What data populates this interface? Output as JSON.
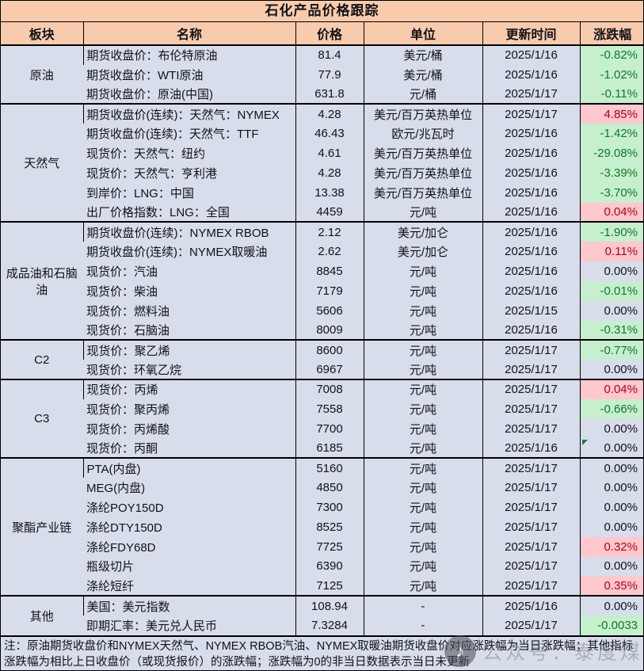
{
  "table": {
    "title": "石化产品价格跟踪",
    "columns": [
      "板块",
      "名称",
      "价格",
      "单位",
      "更新时间",
      "涨跌幅"
    ],
    "colors": {
      "header_bg": "#F8CBAD",
      "row_bg": "#D8DDEC",
      "up_bg": "#FFC7CE",
      "up_text": "#B40014",
      "down_bg": "#C6EFCE",
      "down_text": "#0E7A28",
      "border": "#000000"
    },
    "sections": [
      {
        "label": "原油",
        "rows": [
          {
            "name": "期货收盘价：布伦特原油",
            "price": "81.4",
            "unit": "美元/桶",
            "date": "2025/1/16",
            "change": "-0.82%",
            "dir": "down"
          },
          {
            "name": "期货收盘价：WTI原油",
            "price": "77.9",
            "unit": "美元/桶",
            "date": "2025/1/16",
            "change": "-1.02%",
            "dir": "down"
          },
          {
            "name": "期货收盘价：原油(中国)",
            "price": "631.8",
            "unit": "元/桶",
            "date": "2025/1/17",
            "change": "-0.11%",
            "dir": "down"
          }
        ]
      },
      {
        "label": "天然气",
        "rows": [
          {
            "name": "期货收盘价(连续)：天然气：NYMEX",
            "price": "4.28",
            "unit": "美元/百万英热单位",
            "date": "2025/1/17",
            "change": "4.85%",
            "dir": "up"
          },
          {
            "name": "期货收盘价(连续)：天然气：TTF",
            "price": "46.43",
            "unit": "欧元/兆瓦时",
            "date": "2025/1/16",
            "change": "-1.42%",
            "dir": "down"
          },
          {
            "name": "现货价：天然气：纽约",
            "price": "4.61",
            "unit": "美元/百万英热单位",
            "date": "2025/1/16",
            "change": "-29.08%",
            "dir": "down"
          },
          {
            "name": "现货价：天然气：亨利港",
            "price": "4.28",
            "unit": "美元/百万英热单位",
            "date": "2025/1/16",
            "change": "-3.39%",
            "dir": "down"
          },
          {
            "name": "到岸价：LNG：中国",
            "price": "13.38",
            "unit": "美元/百万英热单位",
            "date": "2025/1/16",
            "change": "-3.70%",
            "dir": "down"
          },
          {
            "name": "出厂价格指数：LNG：全国",
            "price": "4459",
            "unit": "元/吨",
            "date": "2025/1/16",
            "change": "0.04%",
            "dir": "up"
          }
        ]
      },
      {
        "label": "成品油和石脑油",
        "rows": [
          {
            "name": "期货收盘价(连续)：NYMEX RBOB",
            "price": "2.12",
            "unit": "美元/加仑",
            "date": "2025/1/16",
            "change": "-1.90%",
            "dir": "down"
          },
          {
            "name": "期货收盘价(连续)：NYMEX取暖油",
            "price": "2.62",
            "unit": "美元/加仑",
            "date": "2025/1/16",
            "change": "0.11%",
            "dir": "up"
          },
          {
            "name": "现货价：汽油",
            "price": "8845",
            "unit": "元/吨",
            "date": "2025/1/16",
            "change": "0.00%",
            "dir": "flat"
          },
          {
            "name": "现货价：柴油",
            "price": "7179",
            "unit": "元/吨",
            "date": "2025/1/16",
            "change": "-0.01%",
            "dir": "down"
          },
          {
            "name": "现货价：燃料油",
            "price": "5606",
            "unit": "元/吨",
            "date": "2025/1/15",
            "change": "0.00%",
            "dir": "flat"
          },
          {
            "name": "现货价：石脑油",
            "price": "8009",
            "unit": "元/吨",
            "date": "2025/1/16",
            "change": "-0.31%",
            "dir": "down"
          }
        ]
      },
      {
        "label": "C2",
        "rows": [
          {
            "name": "现货价：聚乙烯",
            "price": "8600",
            "unit": "元/吨",
            "date": "2025/1/17",
            "change": "-0.77%",
            "dir": "down"
          },
          {
            "name": "现货价：环氧乙烷",
            "price": "6967",
            "unit": "元/吨",
            "date": "2025/1/17",
            "change": "0.00%",
            "dir": "flat"
          }
        ]
      },
      {
        "label": "C3",
        "rows": [
          {
            "name": "现货价：丙烯",
            "price": "7008",
            "unit": "元/吨",
            "date": "2025/1/17",
            "change": "0.04%",
            "dir": "up"
          },
          {
            "name": "现货价：聚丙烯",
            "price": "7558",
            "unit": "元/吨",
            "date": "2025/1/17",
            "change": "-0.66%",
            "dir": "down"
          },
          {
            "name": "现货价：丙烯酸",
            "price": "7700",
            "unit": "元/吨",
            "date": "2025/1/17",
            "change": "0.00%",
            "dir": "flat"
          },
          {
            "name": "现货价：丙酮",
            "price": "6185",
            "unit": "元/吨",
            "date": "2025/1/16",
            "change": "0.00%",
            "dir": "flat",
            "flag": true
          }
        ]
      },
      {
        "label": "聚酯产业链",
        "rows": [
          {
            "name": "PTA(内盘)",
            "price": "5160",
            "unit": "元/吨",
            "date": "2025/1/17",
            "change": "0.00%",
            "dir": "flat"
          },
          {
            "name": "MEG(内盘)",
            "price": "4850",
            "unit": "元/吨",
            "date": "2025/1/17",
            "change": "0.00%",
            "dir": "flat"
          },
          {
            "name": "涤纶POY150D",
            "price": "7300",
            "unit": "元/吨",
            "date": "2025/1/17",
            "change": "0.00%",
            "dir": "flat"
          },
          {
            "name": "涤纶DTY150D",
            "price": "8525",
            "unit": "元/吨",
            "date": "2025/1/17",
            "change": "0.00%",
            "dir": "flat"
          },
          {
            "name": "涤纶FDY68D",
            "price": "7725",
            "unit": "元/吨",
            "date": "2025/1/17",
            "change": "0.32%",
            "dir": "up"
          },
          {
            "name": "瓶级切片",
            "price": "6390",
            "unit": "元/吨",
            "date": "2025/1/17",
            "change": "0.00%",
            "dir": "flat"
          },
          {
            "name": "涤纶短纤",
            "price": "7125",
            "unit": "元/吨",
            "date": "2025/1/17",
            "change": "0.35%",
            "dir": "up"
          }
        ]
      },
      {
        "label": "其他",
        "rows": [
          {
            "name": "美国：美元指数",
            "price": "108.94",
            "unit": "-",
            "date": "2025/1/16",
            "change": "0.00%",
            "dir": "flat"
          },
          {
            "name": "即期汇率：美元兑人民币",
            "price": "7.3284",
            "unit": "-",
            "date": "2025/1/17",
            "change": "-0.0033",
            "dir": "down"
          }
        ]
      }
    ],
    "note": "注：原油期货收盘价和NYMEX天然气、NYMEX RBOB汽油、NYMEX取暖油期货收盘价对应涨跌幅为当日涨跌幅；其他指标涨跌幅为相比上日收盘价（或现货报价）的涨跌幅；涨跌幅为0的非当日数据表示当日未更新",
    "watermark": "公众号：泰度煤炭"
  }
}
